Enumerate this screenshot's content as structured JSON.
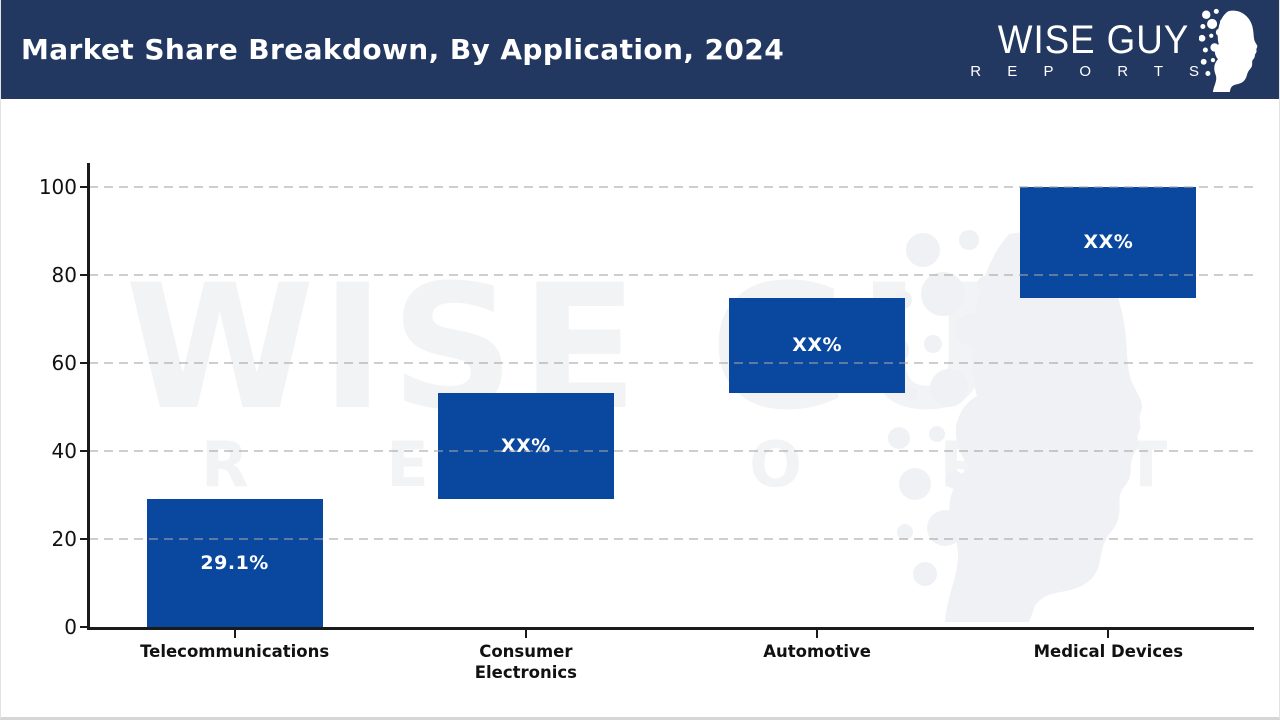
{
  "header": {
    "background": "#223861",
    "title": "Market Share Breakdown, By Application, 2024",
    "logo": {
      "wordmark": "WISE GUY",
      "reports": "R E P O R T S"
    }
  },
  "watermark": {
    "wordmark": "WISE GUY",
    "reports": "R E P O R T S"
  },
  "chart_data": {
    "type": "bar",
    "subtype": "waterfall-breakdown",
    "title": "Market Share Breakdown, By Application, 2024",
    "categories": [
      "Telecommunications",
      "Consumer\nElectronics",
      "Automotive",
      "Medical Devices"
    ],
    "segments": [
      {
        "category": "Telecommunications",
        "start": 0,
        "end": 29.1,
        "label": "29.1%"
      },
      {
        "category": "Consumer Electronics",
        "start": 29.1,
        "end": 53.2,
        "label": "XX%"
      },
      {
        "category": "Automotive",
        "start": 53.2,
        "end": 74.8,
        "label": "XX%"
      },
      {
        "category": "Medical Devices",
        "start": 74.8,
        "end": 100,
        "label": "XX%"
      }
    ],
    "ylim": [
      0,
      100
    ],
    "yticks": [
      0,
      20,
      40,
      60,
      80,
      100
    ],
    "grid": "horizontal-dashed-overlaid",
    "legend": "none",
    "bar_color": "#0a479e",
    "bar_label_color": "#ffffff",
    "axis_color": "#1a1a1a",
    "tick_label_color": "#111111"
  }
}
